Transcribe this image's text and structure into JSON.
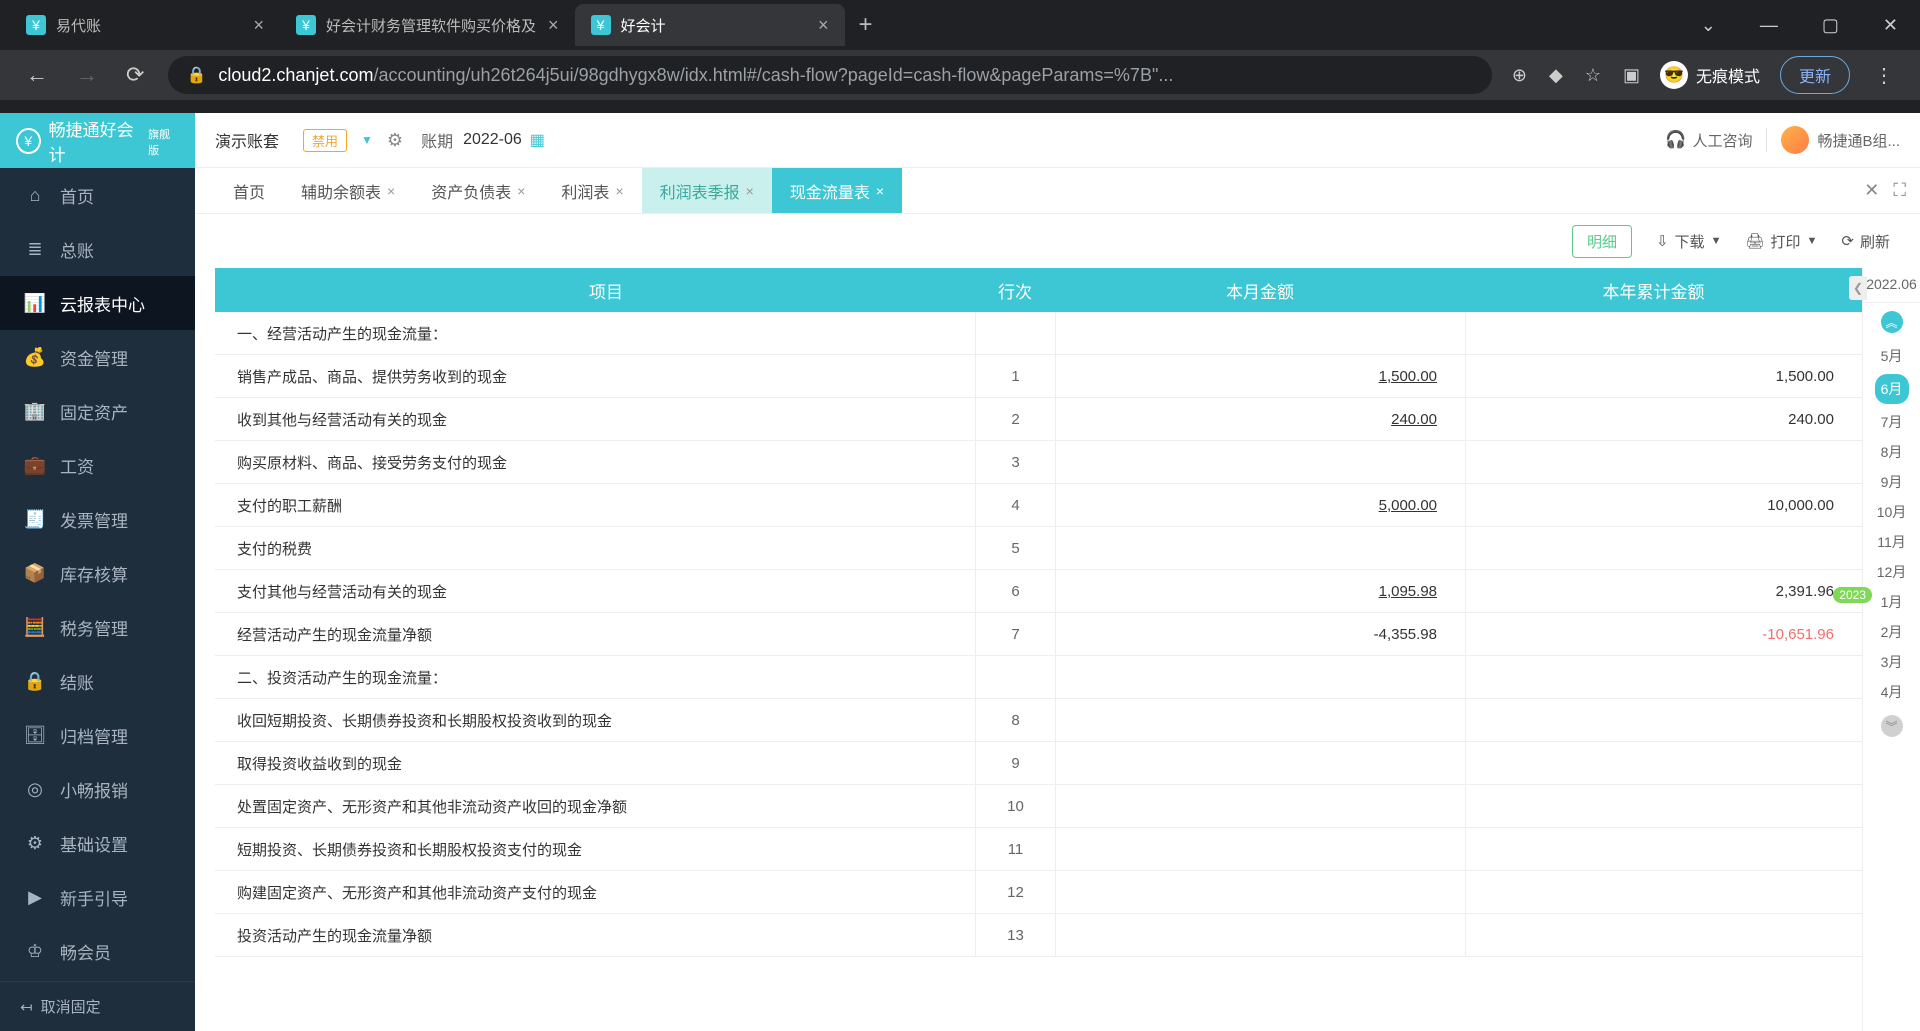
{
  "browser": {
    "tabs": [
      {
        "title": "易代账",
        "favicon_color": "#3dc6d3"
      },
      {
        "title": "好会计财务管理软件购买价格及",
        "favicon_color": "#3dc6d3"
      },
      {
        "title": "好会计",
        "favicon_color": "#3dc6d3"
      }
    ],
    "active_tab_index": 2,
    "url_domain": "cloud2.chanjet.com",
    "url_path": "/accounting/uh26t264j5ui/98gdhygx8w/idx.html#/cash-flow?pageId=cash-flow&pageParams=%7B\"...",
    "incognito_label": "无痕模式",
    "update_label": "更新"
  },
  "app": {
    "logo_text": "畅捷通好会计",
    "logo_sub": "旗舰版",
    "sidebar": [
      {
        "icon": "⌂",
        "label": "首页"
      },
      {
        "icon": "≣",
        "label": "总账"
      },
      {
        "icon": "📊",
        "label": "云报表中心",
        "active": true
      },
      {
        "icon": "💰",
        "label": "资金管理"
      },
      {
        "icon": "🏢",
        "label": "固定资产"
      },
      {
        "icon": "💼",
        "label": "工资"
      },
      {
        "icon": "🧾",
        "label": "发票管理"
      },
      {
        "icon": "📦",
        "label": "库存核算"
      },
      {
        "icon": "🧮",
        "label": "税务管理"
      },
      {
        "icon": "🔒",
        "label": "结账"
      },
      {
        "icon": "🗄",
        "label": "归档管理"
      },
      {
        "icon": "◎",
        "label": "小畅报销"
      },
      {
        "icon": "⚙",
        "label": "基础设置"
      },
      {
        "icon": "▶",
        "label": "新手引导"
      },
      {
        "icon": "♔",
        "label": "畅会员"
      }
    ],
    "sidebar_footer": "取消固定"
  },
  "topbar": {
    "account_name": "演示账套",
    "disable_tag": "禁用",
    "period_label": "账期",
    "period_value": "2022-06",
    "support_label": "人工咨询",
    "user_name": "畅捷通B组..."
  },
  "page_tabs": [
    {
      "label": "首页",
      "closable": false
    },
    {
      "label": "辅助余额表",
      "closable": true
    },
    {
      "label": "资产负债表",
      "closable": true
    },
    {
      "label": "利润表",
      "closable": true
    },
    {
      "label": "利润表季报",
      "closable": true,
      "soft": true
    },
    {
      "label": "现金流量表",
      "closable": true,
      "active": true
    }
  ],
  "toolbar": {
    "detail_btn": "明细",
    "download_label": "下载",
    "print_label": "打印",
    "refresh_label": "刷新"
  },
  "table": {
    "headers": {
      "item": "项目",
      "line": "行次",
      "month": "本月金额",
      "year": "本年累计金额"
    },
    "rows": [
      {
        "item": "一、经营活动产生的现金流量：",
        "line": "",
        "month": "",
        "year": "",
        "section": true
      },
      {
        "item": "销售产成品、商品、提供劳务收到的现金",
        "line": "1",
        "month": "1,500.00",
        "year": "1,500.00",
        "month_link": true
      },
      {
        "item": "收到其他与经营活动有关的现金",
        "line": "2",
        "month": "240.00",
        "year": "240.00",
        "month_link": true
      },
      {
        "item": "购买原材料、商品、接受劳务支付的现金",
        "line": "3",
        "month": "",
        "year": ""
      },
      {
        "item": "支付的职工薪酬",
        "line": "4",
        "month": "5,000.00",
        "year": "10,000.00",
        "month_link": true
      },
      {
        "item": "支付的税费",
        "line": "5",
        "month": "",
        "year": ""
      },
      {
        "item": "支付其他与经营活动有关的现金",
        "line": "6",
        "month": "1,095.98",
        "year": "2,391.96",
        "month_link": true
      },
      {
        "item": "经营活动产生的现金流量净额",
        "line": "7",
        "month": "-4,355.98",
        "year": "-10,651.96",
        "year_neg": true
      },
      {
        "item": "二、投资活动产生的现金流量：",
        "line": "",
        "month": "",
        "year": "",
        "section": true
      },
      {
        "item": "收回短期投资、长期债券投资和长期股权投资收到的现金",
        "line": "8",
        "month": "",
        "year": ""
      },
      {
        "item": "取得投资收益收到的现金",
        "line": "9",
        "month": "",
        "year": ""
      },
      {
        "item": "处置固定资产、无形资产和其他非流动资产收回的现金净额",
        "line": "10",
        "month": "",
        "year": ""
      },
      {
        "item": "短期投资、长期债券投资和长期股权投资支付的现金",
        "line": "11",
        "month": "",
        "year": ""
      },
      {
        "item": "购建固定资产、无形资产和其他非流动资产支付的现金",
        "line": "12",
        "month": "",
        "year": ""
      },
      {
        "item": "投资活动产生的现金流量净额",
        "line": "13",
        "month": "",
        "year": ""
      }
    ]
  },
  "period_rail": {
    "header": "2022.06",
    "months_before": [
      "5月"
    ],
    "current": "6月",
    "months_after": [
      "7月",
      "8月",
      "9月",
      "10月",
      "11月",
      "12月"
    ],
    "next_year_badge": "2023",
    "next_year_months": [
      "1月",
      "2月",
      "3月",
      "4月"
    ]
  }
}
